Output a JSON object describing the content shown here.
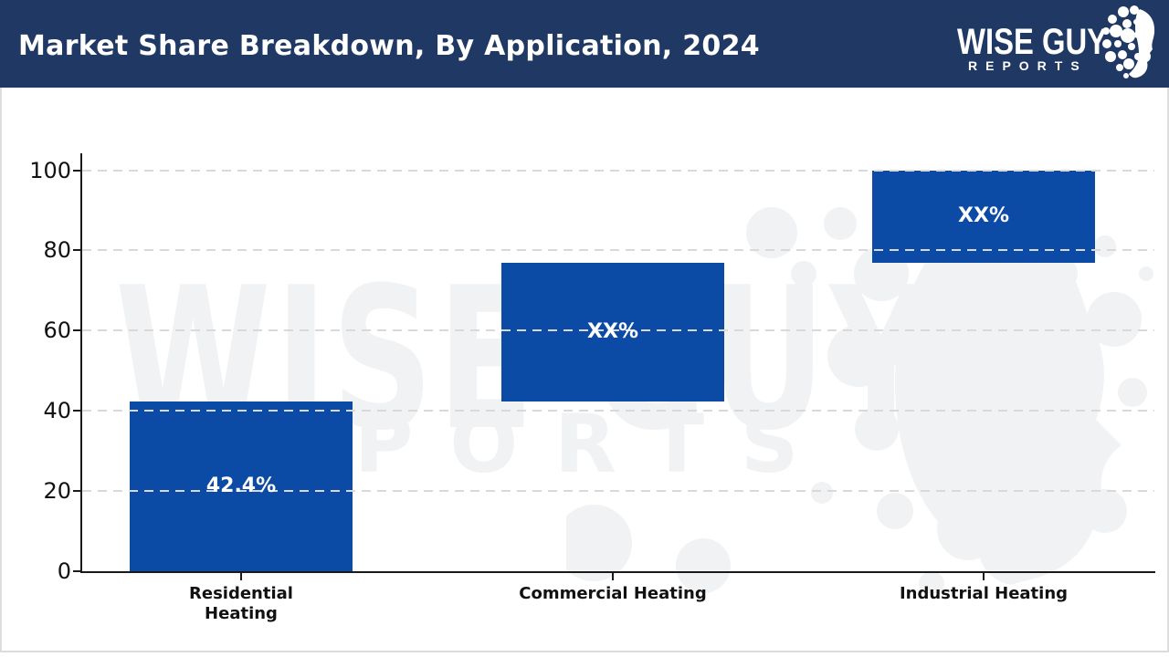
{
  "header": {
    "title": "Market Share Breakdown, By Application, 2024",
    "logo_line1": "WISE GUY",
    "logo_line2": "REPORTS"
  },
  "watermark": {
    "line1": "WISE GUY",
    "line2": "REPORTS"
  },
  "colors": {
    "header_bg": "#1f3864",
    "bar": "#0b4aa5",
    "grid": "#d9d9d9",
    "axis": "#1a1a1a",
    "value_label": "#ffffff",
    "watermark": "#f1f2f4"
  },
  "chart_data": {
    "type": "bar",
    "subtype": "floating-waterfall",
    "title": "Market Share Breakdown, By Application, 2024",
    "categories": [
      [
        "Residential",
        "Heating"
      ],
      [
        "Commercial Heating"
      ],
      [
        "Industrial Heating"
      ]
    ],
    "segments": [
      {
        "category": "Residential Heating",
        "start": 0,
        "end": 42.4,
        "size": 42.4,
        "label": "42.4%"
      },
      {
        "category": "Commercial Heating",
        "start": 42.4,
        "end": 77,
        "size": 34.6,
        "label": "XX%"
      },
      {
        "category": "Industrial Heating",
        "start": 77,
        "end": 100,
        "size": 23,
        "label": "XX%"
      }
    ],
    "ylim": [
      0,
      100
    ],
    "yticks": [
      0,
      20,
      40,
      60,
      80,
      100
    ],
    "xlabel": "",
    "ylabel": "",
    "legend": "none",
    "grid": {
      "horizontal": true,
      "style": "dashed",
      "over_bars": true
    }
  }
}
